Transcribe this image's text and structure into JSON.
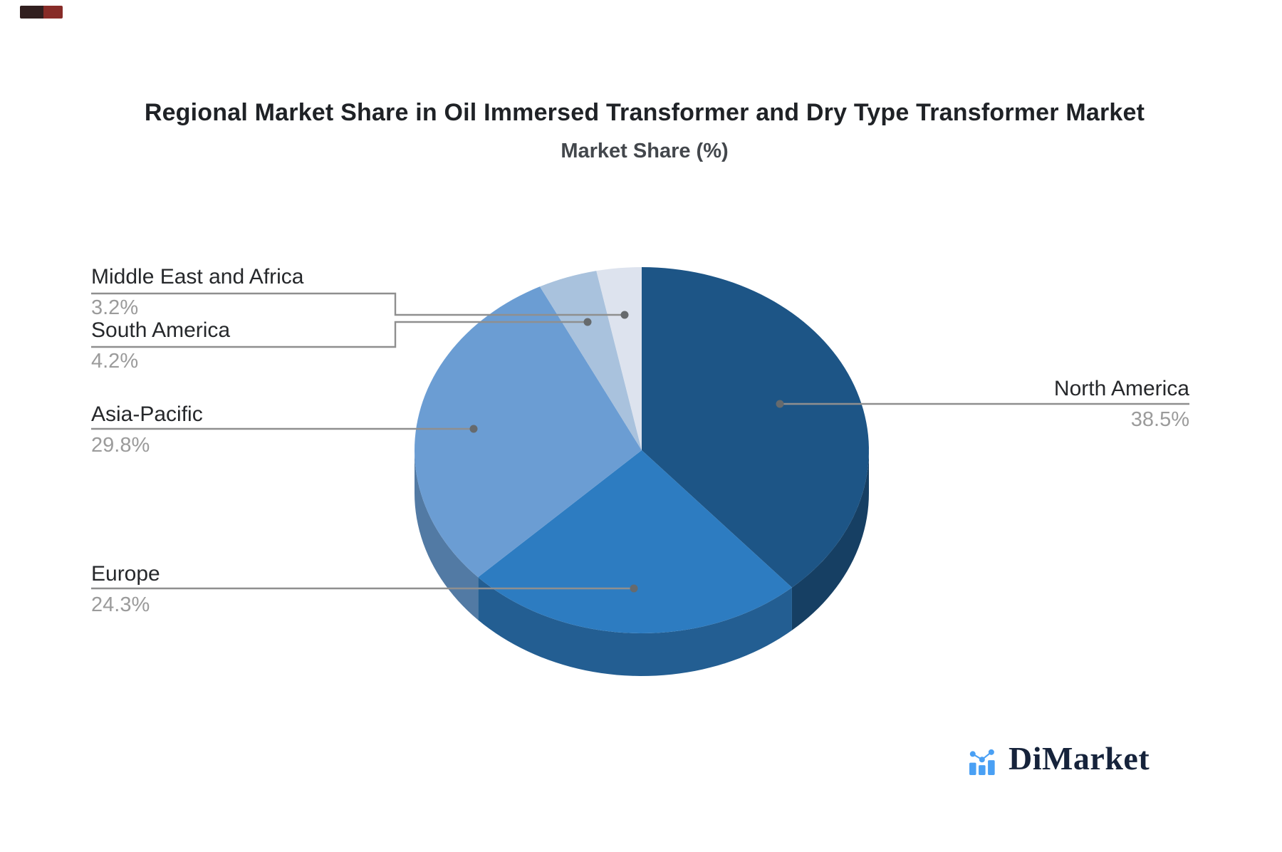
{
  "title": "Regional Market Share in Oil Immersed Transformer and Dry Type Transformer Market",
  "subtitle": "Market Share (%)",
  "chart_data": {
    "type": "pie",
    "style": "3d-pie",
    "unit": "%",
    "start_angle": "12-o'clock, clockwise",
    "categories": [
      "North America",
      "Europe",
      "Asia-Pacific",
      "South America",
      "Middle East and Africa"
    ],
    "values": [
      38.5,
      24.3,
      29.8,
      4.2,
      3.2
    ],
    "slice_colors": [
      "#1d5586",
      "#2d7cc1",
      "#6b9dd3",
      "#a9c2dd",
      "#dde3ee"
    ],
    "side_colors": [
      "#163f63",
      "#235e92",
      "#527aa4",
      "#8498ad",
      "#a9b4c4"
    ],
    "legend_position": "callout-labels",
    "labels": [
      {
        "name": "Middle East and Africa",
        "value_text": "3.2%"
      },
      {
        "name": "South America",
        "value_text": "4.2%"
      },
      {
        "name": "Asia-Pacific",
        "value_text": "29.8%"
      },
      {
        "name": "Europe",
        "value_text": "24.3%"
      },
      {
        "name": "North America",
        "value_text": "38.5%"
      }
    ],
    "callout_line_color": "#8f8f8f",
    "label_color": "#26282b",
    "value_color": "#9b9b9b"
  },
  "branding": {
    "logo_text": "DiMarket",
    "logo_icon": "bar-line-chart-icon",
    "logo_text_color": "#16233b",
    "logo_icon_color": "#4aa0f4"
  }
}
